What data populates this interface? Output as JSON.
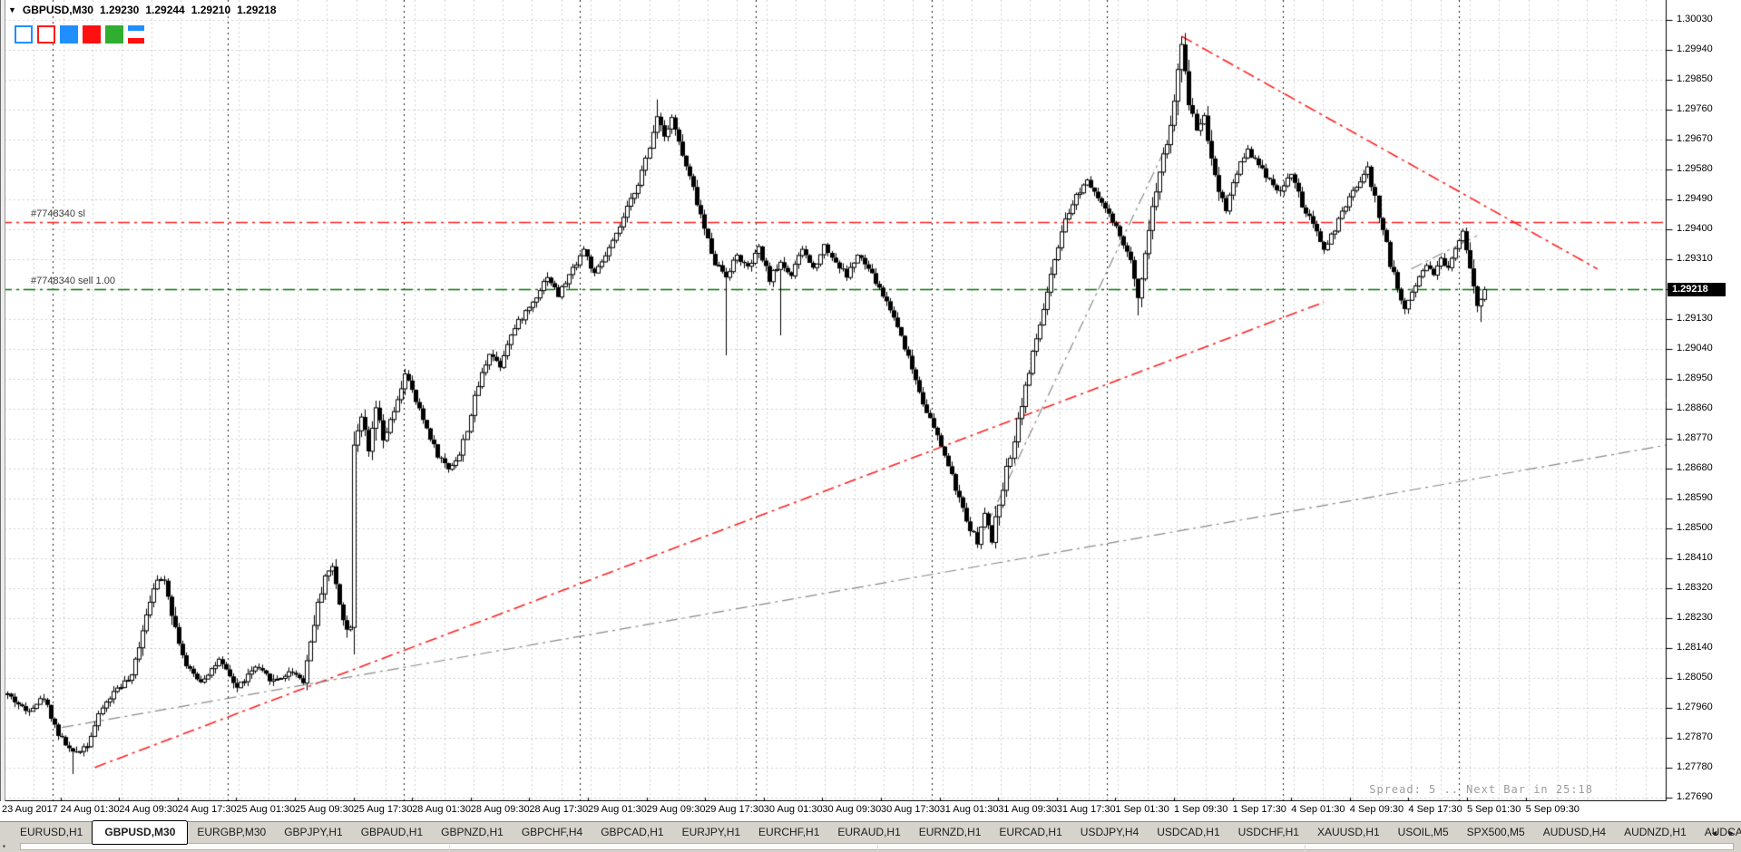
{
  "window": {
    "collapse_icon": "▼",
    "symbol": "GBPUSD,M30",
    "quote_open": "1.29230",
    "quote_high": "1.29244",
    "quote_low": "1.29210",
    "quote_close": "1.29218"
  },
  "swatches": {
    "items": [
      {
        "name": "swatch-outline-blue",
        "type": "outline",
        "color": "#1f8fff"
      },
      {
        "name": "swatch-outline-red",
        "type": "outline",
        "color": "#ff1a1a"
      },
      {
        "name": "swatch-fill-blue",
        "type": "fill",
        "color": "#1f8fff"
      },
      {
        "name": "swatch-fill-red",
        "type": "fill",
        "color": "#ff1010"
      },
      {
        "name": "swatch-fill-green",
        "type": "fill",
        "color": "#2fae2f"
      },
      {
        "name": "swatch-bars-blue-red",
        "type": "bars",
        "colors": [
          "#1f8fff",
          "#ff1010"
        ]
      }
    ]
  },
  "chart_data": {
    "type": "candlestick",
    "symbol": "GBPUSD",
    "timeframe": "M30",
    "ohlc_current": {
      "open": 1.2923,
      "high": 1.29244,
      "low": 1.2921,
      "close": 1.29218
    },
    "current_price": "1.29218",
    "price_axis": {
      "min": 1.2769,
      "max": 1.3003,
      "step": 0.0009,
      "labels": [
        "1.30030",
        "1.29940",
        "1.29850",
        "1.29760",
        "1.29670",
        "1.29580",
        "1.29490",
        "1.29400",
        "1.29310",
        "1.29220",
        "1.29130",
        "1.29040",
        "1.28950",
        "1.28860",
        "1.28770",
        "1.28680",
        "1.28590",
        "1.28500",
        "1.28410",
        "1.28320",
        "1.28230",
        "1.28140",
        "1.28050",
        "1.27960",
        "1.27870",
        "1.27780",
        "1.27690"
      ]
    },
    "time_labels": [
      "23 Aug 2017",
      "24 Aug 01:30",
      "24 Aug 09:30",
      "24 Aug 17:30",
      "25 Aug 01:30",
      "25 Aug 09:30",
      "25 Aug 17:30",
      "28 Aug 01:30",
      "28 Aug 09:30",
      "28 Aug 17:30",
      "29 Aug 01:30",
      "29 Aug 09:30",
      "29 Aug 17:30",
      "30 Aug 01:30",
      "30 Aug 09:30",
      "30 Aug 17:30",
      "31 Aug 01:30",
      "31 Aug 09:30",
      "31 Aug 17:30",
      "1 Sep 01:30",
      "1 Sep 09:30",
      "1 Sep 17:30",
      "4 Sep 01:30",
      "4 Sep 09:30",
      "4 Sep 17:30",
      "5 Sep 01:30",
      "5 Sep 09:30"
    ],
    "orders": [
      {
        "label": "#7748340 sl",
        "price": 1.2942,
        "color": "#ff2020",
        "style": "dashdot"
      },
      {
        "label": "#7748340 sell 1.00",
        "price": 1.29218,
        "color": "#007a00",
        "style": "dashdot"
      }
    ],
    "trendlines": [
      {
        "name": "support-rising",
        "color": "#ff2020",
        "from": {
          "bar": 24,
          "price": 1.2778
        },
        "to": {
          "bar": 361,
          "price": 1.2918
        }
      },
      {
        "name": "resistance-falling",
        "color": "#ff2020",
        "from": {
          "bar": 322,
          "price": 1.2998
        },
        "to": {
          "bar": 436,
          "price": 1.2928
        }
      },
      {
        "name": "gray-shallow-rising",
        "color": "#8a8a8a",
        "from": {
          "bar": 15,
          "price": 1.279
        },
        "to": {
          "bar": 455,
          "price": 1.2875
        }
      },
      {
        "name": "gray-steep-rising",
        "color": "#8a8a8a",
        "from": {
          "bar": 266,
          "price": 1.2845
        },
        "to": {
          "bar": 320,
          "price": 1.297
        }
      },
      {
        "name": "gray-minor-segment",
        "color": "#8a8a8a",
        "from": {
          "bar": 385,
          "price": 1.2928
        },
        "to": {
          "bar": 403,
          "price": 1.2938
        }
      }
    ],
    "bars_total": 406,
    "price_path_anchors": [
      [
        0,
        1.28
      ],
      [
        5,
        1.2795
      ],
      [
        10,
        1.2799
      ],
      [
        14,
        1.2788
      ],
      [
        18,
        1.2782
      ],
      [
        22,
        1.2785
      ],
      [
        26,
        1.2796
      ],
      [
        30,
        1.2802
      ],
      [
        34,
        1.2805
      ],
      [
        37,
        1.282
      ],
      [
        40,
        1.2833
      ],
      [
        43,
        1.2835
      ],
      [
        46,
        1.282
      ],
      [
        49,
        1.2808
      ],
      [
        53,
        1.2804
      ],
      [
        58,
        1.281
      ],
      [
        63,
        1.2802
      ],
      [
        68,
        1.2808
      ],
      [
        73,
        1.2804
      ],
      [
        78,
        1.2807
      ],
      [
        81,
        1.2804
      ],
      [
        84,
        1.2822
      ],
      [
        87,
        1.2836
      ],
      [
        89,
        1.2838
      ],
      [
        91,
        1.2828
      ],
      [
        93,
        1.2819
      ],
      [
        94,
        1.2821
      ],
      [
        95,
        1.2876
      ],
      [
        97,
        1.2884
      ],
      [
        99,
        1.2872
      ],
      [
        101,
        1.2886
      ],
      [
        103,
        1.2876
      ],
      [
        105,
        1.2882
      ],
      [
        107,
        1.2888
      ],
      [
        109,
        1.2897
      ],
      [
        112,
        1.2888
      ],
      [
        115,
        1.288
      ],
      [
        118,
        1.2872
      ],
      [
        121,
        1.2868
      ],
      [
        124,
        1.2872
      ],
      [
        126,
        1.288
      ],
      [
        129,
        1.2893
      ],
      [
        132,
        1.2903
      ],
      [
        135,
        1.2899
      ],
      [
        137,
        1.2906
      ],
      [
        140,
        1.2912
      ],
      [
        144,
        1.2918
      ],
      [
        148,
        1.2926
      ],
      [
        151,
        1.292
      ],
      [
        155,
        1.2928
      ],
      [
        158,
        1.2934
      ],
      [
        161,
        1.2926
      ],
      [
        164,
        1.2932
      ],
      [
        167,
        1.2938
      ],
      [
        170,
        1.2946
      ],
      [
        173,
        1.2954
      ],
      [
        176,
        1.2964
      ],
      [
        178,
        1.2975
      ],
      [
        180,
        1.2968
      ],
      [
        182,
        1.2974
      ],
      [
        185,
        1.2962
      ],
      [
        188,
        1.2952
      ],
      [
        191,
        1.294
      ],
      [
        194,
        1.293
      ],
      [
        197,
        1.2926
      ],
      [
        200,
        1.2932
      ],
      [
        203,
        1.2928
      ],
      [
        206,
        1.2934
      ],
      [
        209,
        1.2925
      ],
      [
        212,
        1.293
      ],
      [
        215,
        1.2926
      ],
      [
        218,
        1.2934
      ],
      [
        221,
        1.2928
      ],
      [
        224,
        1.2935
      ],
      [
        227,
        1.293
      ],
      [
        230,
        1.2926
      ],
      [
        233,
        1.2932
      ],
      [
        236,
        1.2928
      ],
      [
        239,
        1.2922
      ],
      [
        242,
        1.2916
      ],
      [
        245,
        1.2908
      ],
      [
        248,
        1.2898
      ],
      [
        251,
        1.2888
      ],
      [
        254,
        1.288
      ],
      [
        257,
        1.2872
      ],
      [
        260,
        1.2862
      ],
      [
        263,
        1.2852
      ],
      [
        266,
        1.2846
      ],
      [
        268,
        1.2854
      ],
      [
        270,
        1.2846
      ],
      [
        272,
        1.2858
      ],
      [
        275,
        1.2872
      ],
      [
        278,
        1.2888
      ],
      [
        281,
        1.2902
      ],
      [
        284,
        1.2916
      ],
      [
        287,
        1.293
      ],
      [
        290,
        1.2942
      ],
      [
        293,
        1.295
      ],
      [
        296,
        1.2955
      ],
      [
        299,
        1.295
      ],
      [
        302,
        1.2944
      ],
      [
        305,
        1.2938
      ],
      [
        308,
        1.293
      ],
      [
        310,
        1.292
      ],
      [
        312,
        1.2934
      ],
      [
        314,
        1.2946
      ],
      [
        316,
        1.2958
      ],
      [
        318,
        1.2966
      ],
      [
        320,
        1.2978
      ],
      [
        322,
        1.2994
      ],
      [
        324,
        1.2979
      ],
      [
        326,
        1.297
      ],
      [
        328,
        1.2974
      ],
      [
        330,
        1.2962
      ],
      [
        332,
        1.2952
      ],
      [
        334,
        1.2946
      ],
      [
        336,
        1.2954
      ],
      [
        338,
        1.296
      ],
      [
        340,
        1.2964
      ],
      [
        343,
        1.2959
      ],
      [
        346,
        1.2955
      ],
      [
        349,
        1.2951
      ],
      [
        352,
        1.2957
      ],
      [
        355,
        1.2947
      ],
      [
        358,
        1.2941
      ],
      [
        361,
        1.2934
      ],
      [
        364,
        1.294
      ],
      [
        367,
        1.2947
      ],
      [
        370,
        1.2953
      ],
      [
        373,
        1.2958
      ],
      [
        375,
        1.2949
      ],
      [
        377,
        1.294
      ],
      [
        379,
        1.293
      ],
      [
        381,
        1.2922
      ],
      [
        383,
        1.2916
      ],
      [
        385,
        1.2921
      ],
      [
        387,
        1.2926
      ],
      [
        389,
        1.2929
      ],
      [
        391,
        1.2927
      ],
      [
        393,
        1.2931
      ],
      [
        395,
        1.2928
      ],
      [
        397,
        1.2934
      ],
      [
        399,
        1.294
      ],
      [
        401,
        1.2929
      ],
      [
        403,
        1.2917
      ],
      [
        405,
        1.2922
      ]
    ],
    "special_bars": [
      {
        "bar": 18,
        "low": 1.2776
      },
      {
        "bar": 95,
        "low": 1.2812
      },
      {
        "bar": 178,
        "high": 1.2979
      },
      {
        "bar": 197,
        "low": 1.2902
      },
      {
        "bar": 212,
        "low": 1.2908
      },
      {
        "bar": 310,
        "low": 1.2914
      },
      {
        "bar": 322,
        "high": 1.2998
      },
      {
        "bar": 404,
        "low": 1.2912
      }
    ],
    "footer_note": "Spread: 5 .. Next Bar in 25:18"
  },
  "tabs": {
    "items": [
      {
        "label": "EURUSD,H1",
        "active": false
      },
      {
        "label": "GBPUSD,M30",
        "active": true
      },
      {
        "label": "EURGBP,M30",
        "active": false
      },
      {
        "label": "GBPJPY,H1",
        "active": false
      },
      {
        "label": "GBPAUD,H1",
        "active": false
      },
      {
        "label": "GBPNZD,H1",
        "active": false
      },
      {
        "label": "GBPCHF,H4",
        "active": false
      },
      {
        "label": "GBPCAD,H1",
        "active": false
      },
      {
        "label": "EURJPY,H1",
        "active": false
      },
      {
        "label": "EURCHF,H1",
        "active": false
      },
      {
        "label": "EURAUD,H1",
        "active": false
      },
      {
        "label": "EURNZD,H1",
        "active": false
      },
      {
        "label": "EURCAD,H1",
        "active": false
      },
      {
        "label": "USDJPY,H4",
        "active": false
      },
      {
        "label": "USDCAD,H1",
        "active": false
      },
      {
        "label": "USDCHF,H1",
        "active": false
      },
      {
        "label": "XAUUSD,H1",
        "active": false
      },
      {
        "label": "USOIL,M5",
        "active": false
      },
      {
        "label": "SPX500,M5",
        "active": false
      },
      {
        "label": "AUDUSD,H4",
        "active": false
      },
      {
        "label": "AUDNZD,H1",
        "active": false
      },
      {
        "label": "AUDCAD,Daily",
        "active": false
      }
    ],
    "scroll_left_icon": "◄",
    "scroll_right_icon": "►"
  }
}
